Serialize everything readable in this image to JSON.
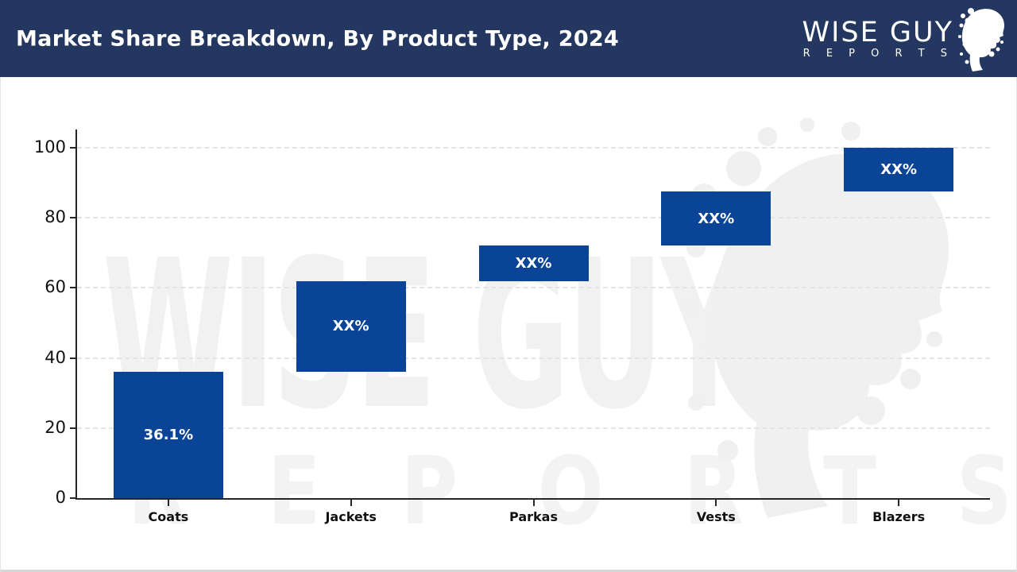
{
  "header": {
    "title": "Market Share Breakdown, By Product Type, 2024",
    "bg_color": "#233760",
    "logo": {
      "line1": "WISE GUY",
      "line2": "R E P O R T S"
    }
  },
  "watermark": {
    "line1": "WISE GUY",
    "line2": "R E P O R T S"
  },
  "chart_data": {
    "type": "bar",
    "variant": "waterfall",
    "title": "Market Share Breakdown, By Product Type, 2024",
    "categories": [
      "Coats",
      "Jackets",
      "Parkas",
      "Vests",
      "Blazers"
    ],
    "segments": [
      {
        "category": "Coats",
        "start": 0,
        "end": 36.1,
        "label": "36.1%"
      },
      {
        "category": "Jackets",
        "start": 36.1,
        "end": 62,
        "label": "XX%"
      },
      {
        "category": "Parkas",
        "start": 62,
        "end": 72,
        "label": "XX%"
      },
      {
        "category": "Vests",
        "start": 72,
        "end": 87.5,
        "label": "XX%"
      },
      {
        "category": "Blazers",
        "start": 87.5,
        "end": 100,
        "label": "XX%"
      }
    ],
    "xlabel": "",
    "ylabel": "",
    "yticks": [
      0,
      20,
      40,
      60,
      80,
      100
    ],
    "ylim": [
      0,
      105
    ],
    "grid": "horizontal-dashed",
    "legend": "none",
    "bar_color": "#0a4496",
    "bar_label_color": "#ffffff",
    "axis_color": "#262626"
  }
}
